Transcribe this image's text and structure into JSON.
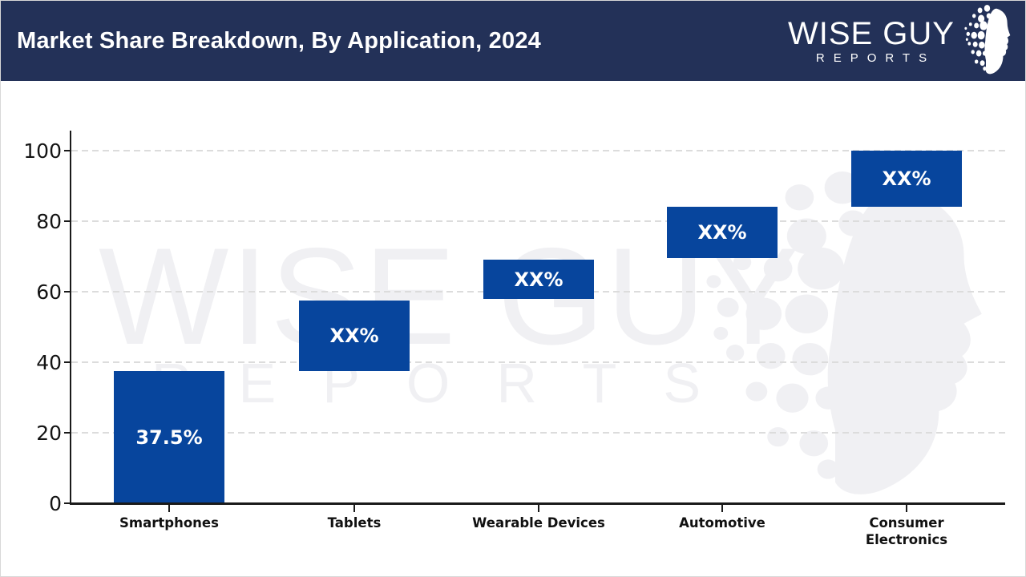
{
  "header": {
    "title": "Market Share Breakdown, By Application, 2024",
    "background_color": "#233158",
    "logo": {
      "line1": "WISE GUY",
      "line2": "REPORTS",
      "icon": "face-dots-icon"
    }
  },
  "watermark": {
    "line1": "WISE GUY",
    "line2": "REPORTS",
    "icon": "face-dots-watermark-icon"
  },
  "chart_data": {
    "type": "bar",
    "subtype": "waterfall-floating-bars",
    "title": "Market Share Breakdown, By Application, 2024",
    "xlabel": "",
    "ylabel": "",
    "categories": [
      "Smartphones",
      "Tablets",
      "Wearable Devices",
      "Automotive",
      "Consumer Electronics"
    ],
    "segments": [
      {
        "category": "Smartphones",
        "start": 0,
        "end": 37.5,
        "label": "37.5%"
      },
      {
        "category": "Tablets",
        "start": 37.5,
        "end": 57.5,
        "label": "XX%"
      },
      {
        "category": "Wearable Devices",
        "start": 58,
        "end": 69,
        "label": "XX%"
      },
      {
        "category": "Automotive",
        "start": 69.5,
        "end": 84,
        "label": "XX%"
      },
      {
        "category": "Consumer Electronics",
        "start": 84,
        "end": 100,
        "label": "XX%"
      }
    ],
    "yticks": [
      0,
      20,
      40,
      60,
      80,
      100
    ],
    "ylim": [
      0,
      105
    ],
    "grid": "horizontal dashed",
    "legend": "none",
    "bar_color": "#07459d",
    "bar_label_color": "#ffffff",
    "axis_color": "#1a1a1a",
    "gridline_color": "#dcdcdc"
  }
}
